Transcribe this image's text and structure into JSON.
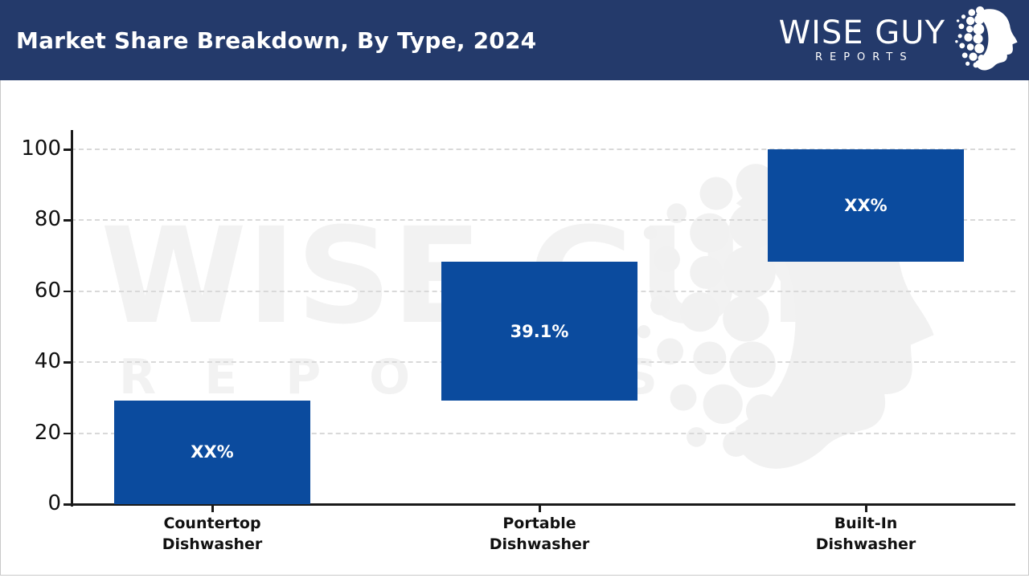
{
  "header": {
    "title": "Market Share Breakdown, By Type, 2024",
    "logo": {
      "wordmark": "WISE GUY",
      "subtitle": "REPORTS"
    }
  },
  "watermark": {
    "wordmark": "WISE GUY",
    "subtitle": "REPORTS"
  },
  "chart_data": {
    "type": "bar",
    "variant": "floating-segment-bars-waterfall",
    "title": "Market Share Breakdown, By Type, 2024",
    "categories": [
      "Countertop Dishwasher",
      "Portable Dishwasher",
      "Built-In Dishwasher"
    ],
    "segments": [
      {
        "category": "Countertop Dishwasher",
        "start": 0,
        "end": 29.2,
        "value_label": "XX%"
      },
      {
        "category": "Portable Dishwasher",
        "start": 29.2,
        "end": 68.3,
        "value_label": "39.1%"
      },
      {
        "category": "Built-In Dishwasher",
        "start": 68.3,
        "end": 100,
        "value_label": "XX%"
      }
    ],
    "y_ticks": [
      0,
      20,
      40,
      60,
      80,
      100
    ],
    "ylim": [
      0,
      105
    ],
    "xlabel": "",
    "ylabel": "",
    "legend": "none",
    "grid": "horizontal-dashed",
    "bar_color": "#0b4b9e",
    "bar_label_color": "#ffffff"
  },
  "colors": {
    "header_bg": "#243a6b",
    "bar": "#0b4b9e",
    "grid": "#d9d9d9",
    "axis": "#1a1a1a",
    "watermark": "#f2f2f2",
    "border": "#c9c9c9"
  }
}
